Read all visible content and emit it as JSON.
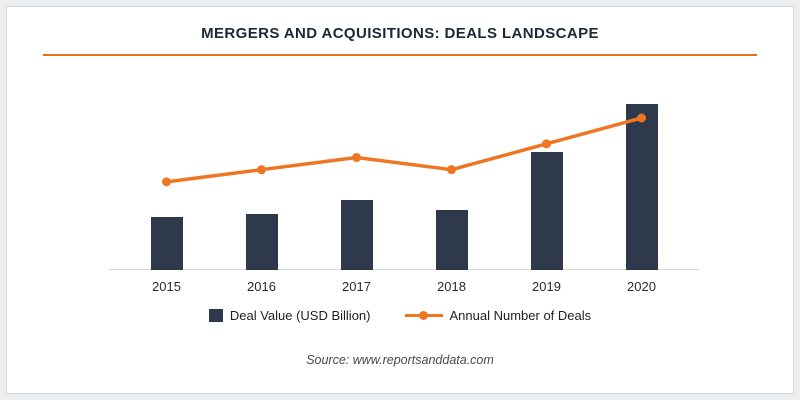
{
  "footer": {
    "source": "Source: www.reportsanddata.com"
  },
  "colors": {
    "bar": "#2e3a4b",
    "line": "#ee7623",
    "accent_rule": "#e8701a",
    "title_text": "#1f2736"
  },
  "chart_data": {
    "type": "bar",
    "combo": "bar+line",
    "title": "MERGERS AND ACQUISITIONS: DEALS LANDSCAPE",
    "categories": [
      "2015",
      "2016",
      "2017",
      "2018",
      "2019",
      "2020"
    ],
    "series": [
      {
        "name": "Deal Value (USD Billion)",
        "type": "bar",
        "values": [
          32,
          34,
          42,
          36,
          71,
          100
        ]
      },
      {
        "name": "Annual Number of Deals",
        "type": "line",
        "values": [
          58,
          66,
          74,
          66,
          83,
          100
        ]
      }
    ],
    "xlabel": "",
    "ylabel": "",
    "ylim": [
      0,
      100
    ],
    "grid": false,
    "legend_position": "bottom"
  }
}
